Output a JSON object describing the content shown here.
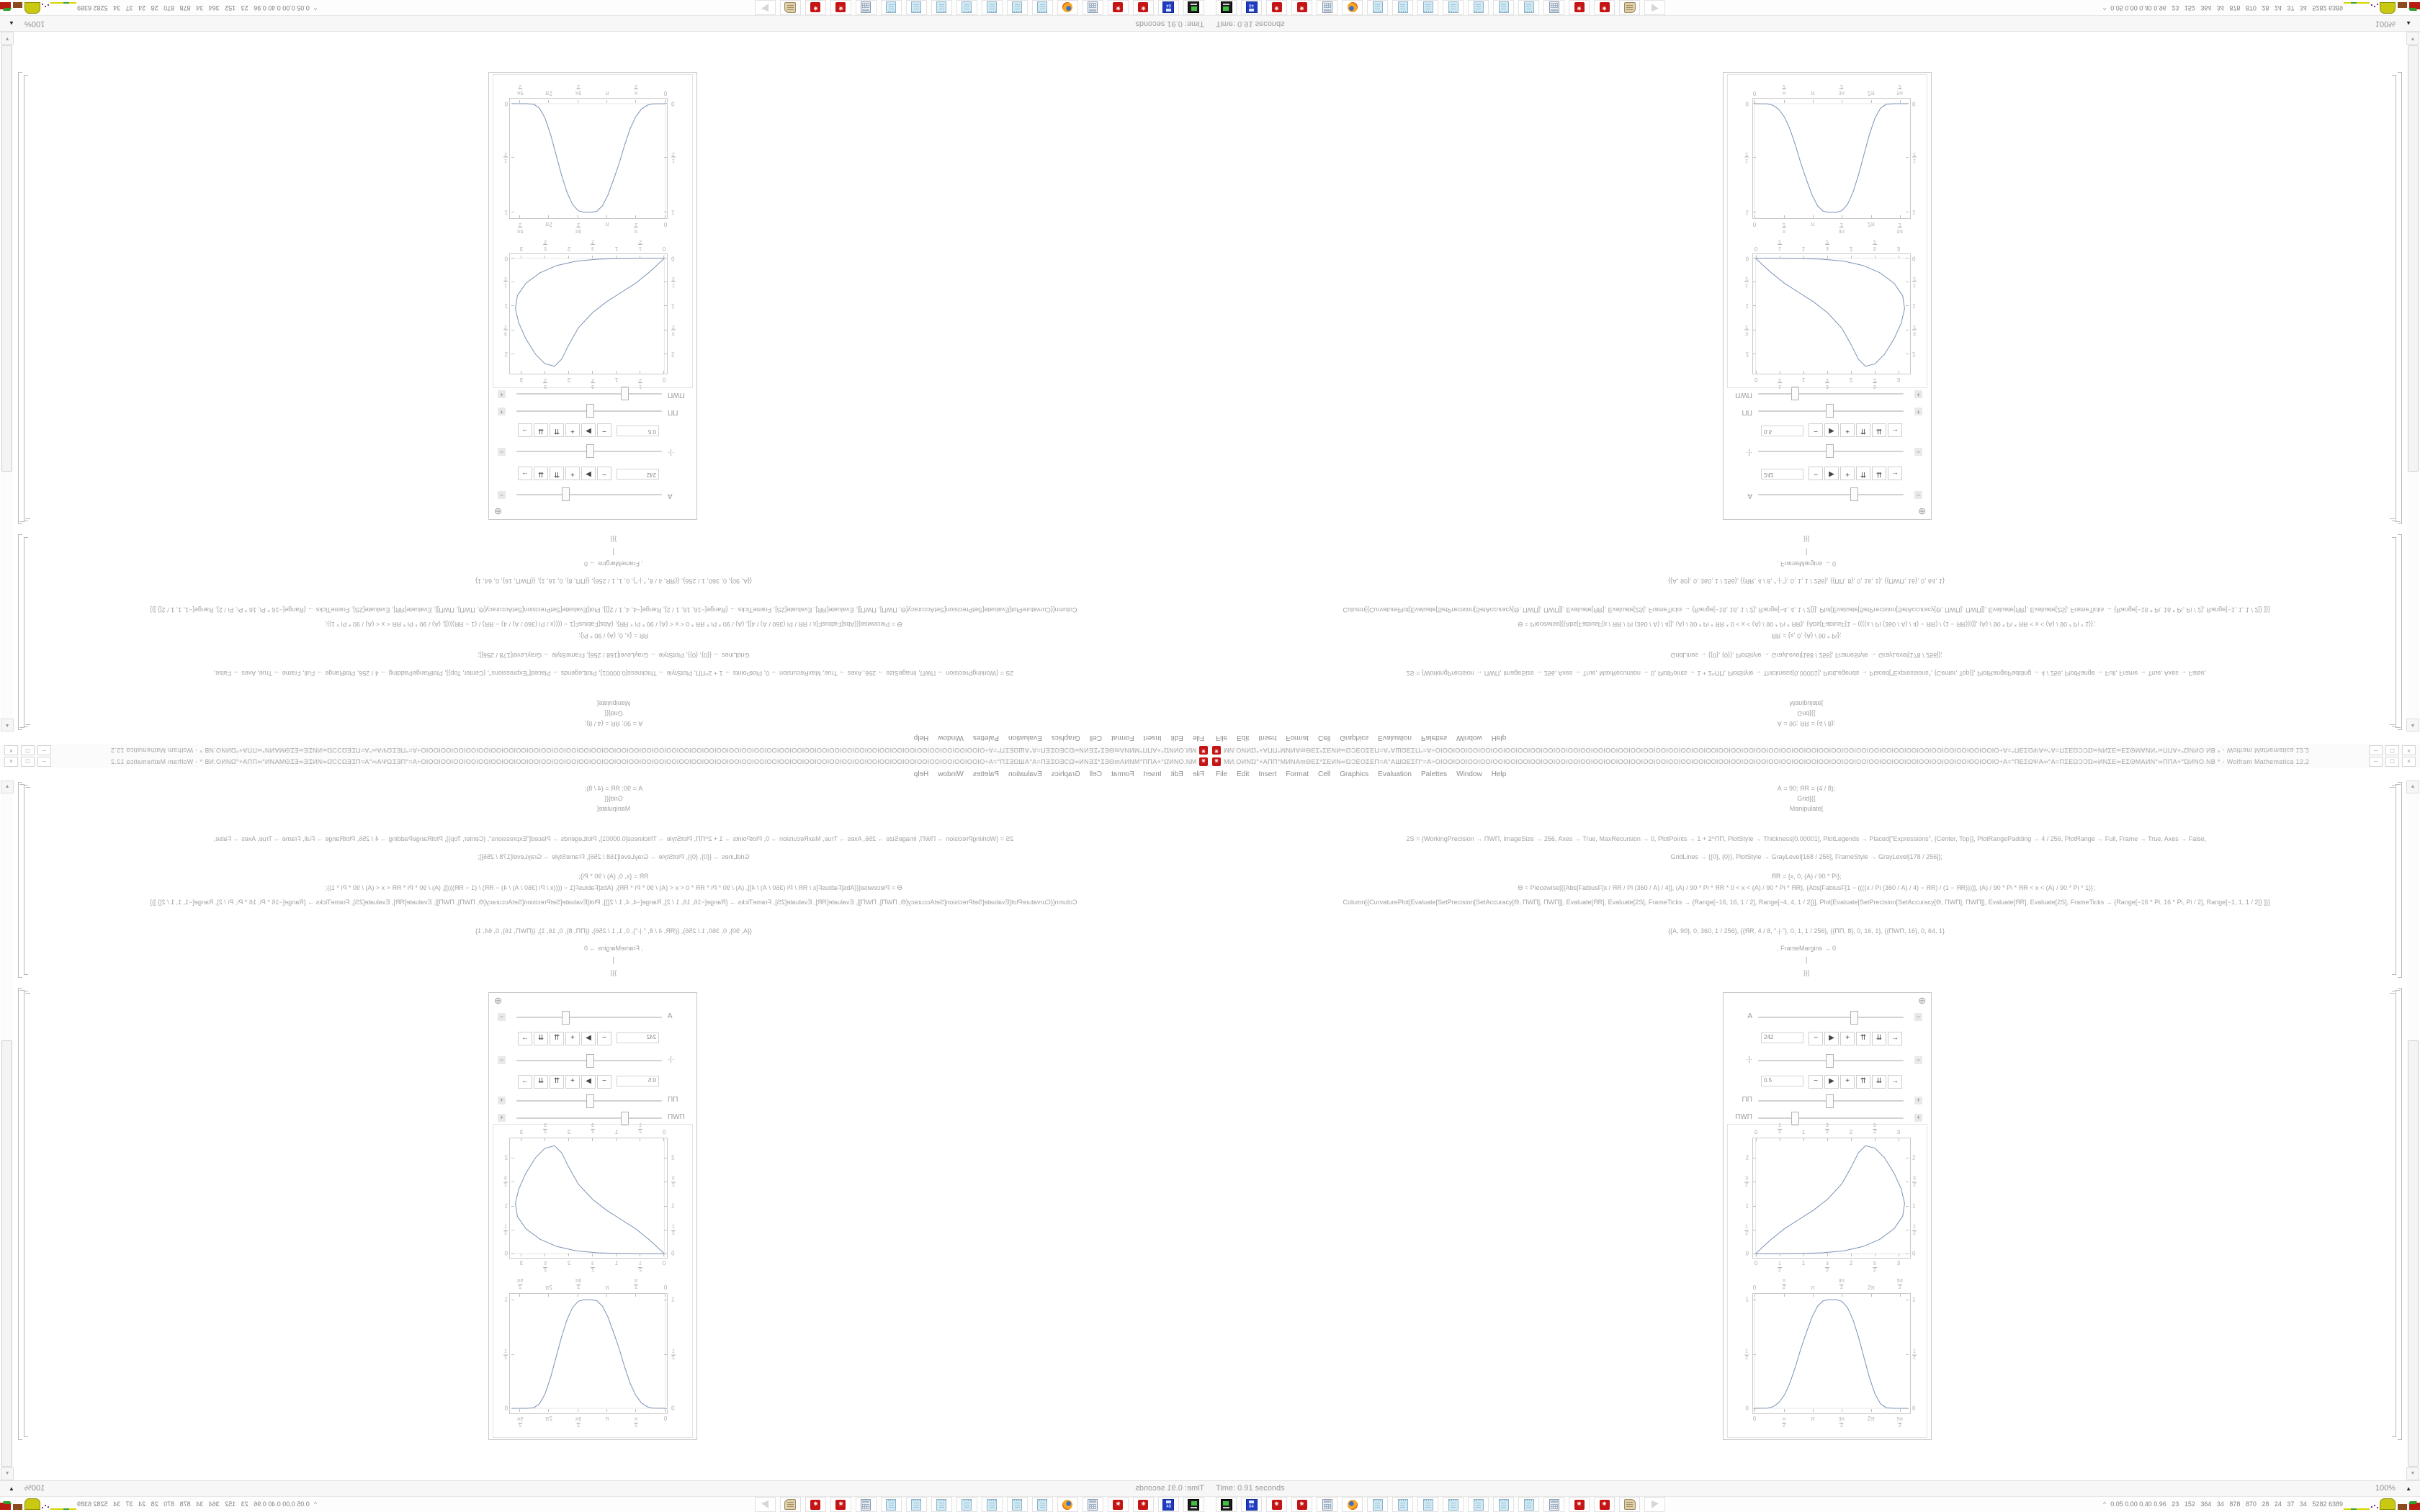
{
  "window": {
    "title_prefix": "МИ.ОИΝΏ°+ΑΠΠ°МИΝΑmΘΕΣ*ΣΕИΝ∞ΏƆΕΟΣΕΠ=Α°ΑШΩΕΣΠ°=Α÷",
    "title_fill": "ΟΙΟ",
    "title_fill_count": 45,
    "title_mid": "÷Α=°ΠΕΣΩΨΑ∞°Α=ΠΣΕΩƆƆΏ∞ИΝΣΕ∞ΕΣΘМΑИΝ°∞ΠΠΑ+°ΏИΝΟ",
    "title_suffix": ".NB * - Wolfram Mathematica 12.2",
    "controls": [
      {
        "name": "minimize",
        "glyph": "–"
      },
      {
        "name": "restore",
        "glyph": "□"
      },
      {
        "name": "close",
        "glyph": "×"
      }
    ]
  },
  "menu": {
    "items": [
      "File",
      "Edit",
      "Insert",
      "Format",
      "Cell",
      "Graphics",
      "Evaluation",
      "Palettes",
      "Window",
      "Help"
    ]
  },
  "notebook": {
    "code_lines": [
      {
        "text": "А = 90; ЯR = (4 / 8);",
        "y": 6
      },
      {
        "text": "Grid[{{",
        "y": 20
      },
      {
        "text": "Manipulate[",
        "y": 34
      },
      {
        "text": "2S = {WorkingPrecision → ΠWΠ, ImageSize → 256, Axes → True, MaxRecursion → 0, PlotPoints → 1 + 2^ΠΠ, PlotStyle → Thickness[0.00001], PlotLegends → Placed[\"Expressions\", {Center, Top}], PlotRangePadding → 4 / 256, PlotRange → Full, Frame → True, Axes → False,",
        "y": 76
      },
      {
        "text": "GridLines → {{0}, {0}}, PlotStyle → GrayLevel[168 / 256], FrameStyle → GrayLevel[178 / 256]];",
        "y": 101
      },
      {
        "text": "ЯR = {x, 0, (А) / 90 * Pi};",
        "y": 128
      },
      {
        "text": "Ѳ = Piecewise[{{Abs[FabiusF[x / ЯR / Pi (360 / А) / 4]], (А) / 90 * Pi * ЯR * 0 < x < (А) / 90 * Pi * ЯR}, {Abs[FabiusF[1 − ((((x / Pi (360 / А) / 4) − ЯR) / (1 − ЯR)))]], (А) / 90 * Pi * ЯR < x < (А) / 90 * Pi * 1}};",
        "y": 144
      },
      {
        "text": "Column[{CurvaturePlot[Evaluate[SetPrecision[SetAccuracy[Ѳ, ΠWΠ], ΠWΠ]], Evaluate[ЯR], Evaluate[2S], FrameTicks → {Range[−16, 16, 1 / 2], Range[−4, 4, 1 / 2]}], Plot[Evaluate[SetPrecision[SetAccuracy[Ѳ, ΠWΠ], ΠWΠ]], Evaluate[ЯR], Evaluate[2S], FrameTicks → {Range[−16 * Pi, 16 * Pi, Pi / 2], Range[−1, 1, 1 / 2]} ]}]",
        "y": 164
      },
      {
        "text": "{{А, 90}, 0, 360, 1 / 256}, {{ЯR, 4 / 8, \"·|·\"}, 0, 1, 1 / 256}, {{ΠΠ, 8}, 0, 16, 1}, {{ΠWΠ, 16}, 0, 64, 1}",
        "y": 204
      },
      {
        "text": ", FrameMargins → 0",
        "y": 228
      },
      {
        "text": "]",
        "y": 244
      },
      {
        "text": "}}]",
        "y": 262
      }
    ]
  },
  "manipulate": {
    "corner_glyph": "⊕",
    "control_buttons": [
      {
        "name": "decrement",
        "glyph": "−"
      },
      {
        "name": "play",
        "glyph": "▶"
      },
      {
        "name": "increment",
        "glyph": "+"
      },
      {
        "name": "faster",
        "glyph": "⇈"
      },
      {
        "name": "slower",
        "glyph": "⇊"
      },
      {
        "name": "direction",
        "glyph": "→"
      }
    ],
    "sliders": [
      {
        "label": "А",
        "percent": 66,
        "collapse": "−",
        "field": "242",
        "y": 24
      },
      {
        "label": "·|·",
        "percent": 49,
        "collapse": "−",
        "field": "0.5",
        "y": 84
      },
      {
        "label": "ΠΠ",
        "percent": 49,
        "collapse": "+",
        "y": 140
      },
      {
        "label": "ΠWΠ",
        "percent": 25,
        "collapse": "+",
        "y": 164
      }
    ]
  },
  "status_bar": {
    "time": "Time: 0.91 seconds",
    "zoom": "100%",
    "zoom_menu_glyph": "▲"
  },
  "taskbar": {
    "launchers": [
      {
        "type": "drive"
      },
      {
        "type": "floppy",
        "label": "64"
      },
      {
        "type": "mma"
      },
      {
        "type": "mma"
      },
      {
        "type": "calc"
      },
      {
        "type": "firefox"
      },
      {
        "type": "notepad"
      },
      {
        "type": "notepad"
      },
      {
        "type": "notepad"
      },
      {
        "type": "notepad"
      },
      {
        "type": "notepad"
      },
      {
        "type": "notepad"
      },
      {
        "type": "notepad"
      },
      {
        "type": "calc"
      },
      {
        "type": "mma"
      },
      {
        "type": "mma"
      },
      {
        "type": "scroll"
      },
      {
        "type": "quill"
      }
    ],
    "tray": {
      "chevron": "^",
      "stats": "0.05 0.00 0.40 0.96   23   152   364   34   878   870   28   24   37   34   5282 6389"
    }
  },
  "scrollbar": {
    "up_glyph": "▲",
    "down_glyph": "▼"
  },
  "chart_data": [
    {
      "type": "line",
      "title": "CurvaturePlot output (Fabius curvature loop)",
      "color": "#7a92b4",
      "frame": true,
      "grid": "zero-lines",
      "xlim": [
        -0.07,
        3.22
      ],
      "ylim": [
        -0.07,
        2.42
      ],
      "x_ticks": [
        {
          "v": 0,
          "l": "0"
        },
        {
          "v": 0.5,
          "l": "1|2"
        },
        {
          "v": 1,
          "l": "1"
        },
        {
          "v": 1.5,
          "l": "3|2"
        },
        {
          "v": 2,
          "l": "2"
        },
        {
          "v": 2.5,
          "l": "5|2"
        },
        {
          "v": 3,
          "l": "3"
        }
      ],
      "y_ticks": [
        {
          "v": 0,
          "l": "0"
        },
        {
          "v": 0.5,
          "l": "1|2"
        },
        {
          "v": 1,
          "l": "1"
        },
        {
          "v": 1.5,
          "l": "3|2"
        },
        {
          "v": 2,
          "l": "2"
        }
      ],
      "points": [
        [
          0,
          0
        ],
        [
          0.3,
          0.28
        ],
        [
          0.6,
          0.52
        ],
        [
          0.9,
          0.71
        ],
        [
          1.2,
          0.9
        ],
        [
          1.5,
          1.13
        ],
        [
          1.8,
          1.45
        ],
        [
          2.0,
          1.8
        ],
        [
          2.15,
          2.1
        ],
        [
          2.3,
          2.25
        ],
        [
          2.5,
          2.2
        ],
        [
          2.7,
          2.0
        ],
        [
          2.9,
          1.68
        ],
        [
          3.05,
          1.35
        ],
        [
          3.12,
          1.05
        ],
        [
          3.08,
          0.78
        ],
        [
          2.9,
          0.52
        ],
        [
          2.6,
          0.3
        ],
        [
          2.25,
          0.15
        ],
        [
          1.85,
          0.06
        ],
        [
          1.4,
          0.02
        ],
        [
          0.9,
          0.005
        ],
        [
          0.4,
          0
        ],
        [
          0,
          0
        ]
      ]
    },
    {
      "type": "line",
      "title": "Plot output (Fabius smooth bump)",
      "color": "#7a92b4",
      "frame": true,
      "grid": "zero-lines",
      "xlim": [
        -0.12,
        8.35
      ],
      "ylim": [
        -0.04,
        1.06
      ],
      "x_ticks": [
        {
          "v": 0,
          "l": "0"
        },
        {
          "v": 1.5708,
          "l": "π|2"
        },
        {
          "v": 3.1416,
          "l": "π"
        },
        {
          "v": 4.7124,
          "l": "3π|2"
        },
        {
          "v": 6.2832,
          "l": "2π"
        },
        {
          "v": 7.854,
          "l": "5π|2"
        }
      ],
      "y_ticks": [
        {
          "v": 0,
          "l": "0"
        },
        {
          "v": 0.5,
          "l": "1|2"
        },
        {
          "v": 1,
          "l": "1"
        }
      ],
      "points": [
        [
          0,
          0
        ],
        [
          0.7,
          0.002
        ],
        [
          1.0,
          0.015
        ],
        [
          1.3,
          0.05
        ],
        [
          1.6,
          0.12
        ],
        [
          1.9,
          0.23
        ],
        [
          2.2,
          0.38
        ],
        [
          2.5,
          0.55
        ],
        [
          2.8,
          0.7
        ],
        [
          3.1,
          0.84
        ],
        [
          3.4,
          0.94
        ],
        [
          3.7,
          0.99
        ],
        [
          4.0,
          1.0
        ],
        [
          4.4,
          1.0
        ],
        [
          4.7,
          0.985
        ],
        [
          5.0,
          0.93
        ],
        [
          5.3,
          0.82
        ],
        [
          5.6,
          0.66
        ],
        [
          5.9,
          0.47
        ],
        [
          6.2,
          0.28
        ],
        [
          6.5,
          0.13
        ],
        [
          6.8,
          0.04
        ],
        [
          7.1,
          0.006
        ],
        [
          7.5,
          0
        ],
        [
          8.25,
          0
        ]
      ]
    }
  ]
}
